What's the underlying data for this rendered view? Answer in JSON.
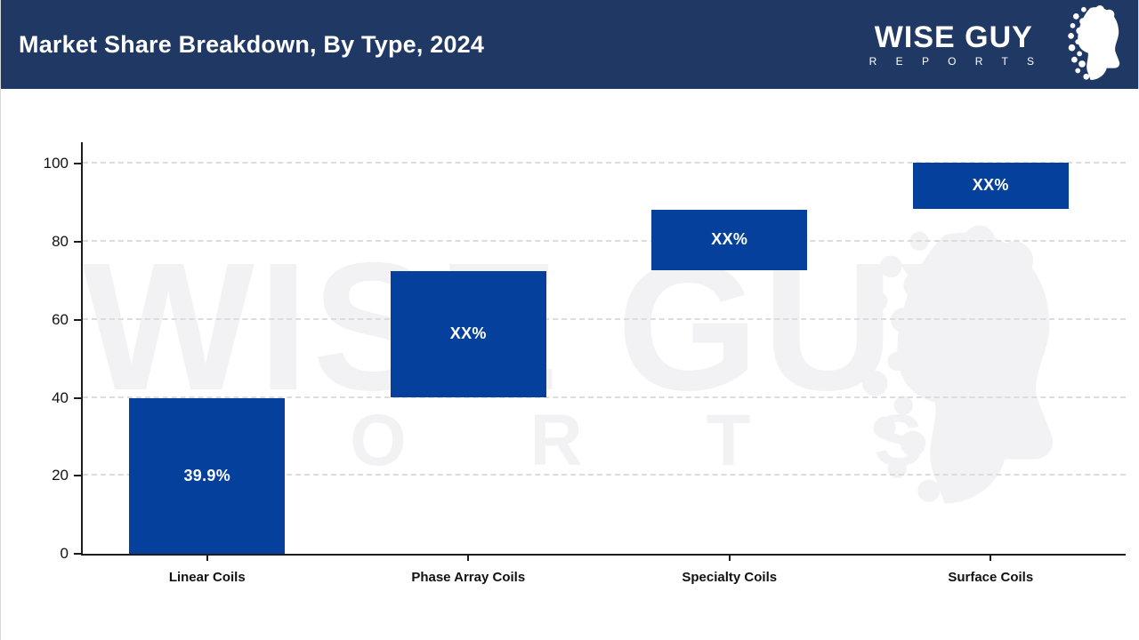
{
  "header": {
    "title": "Market Share Breakdown, By Type, 2024",
    "logo": {
      "line1": "WISE GUY",
      "line2": "R E P O R T S"
    }
  },
  "watermark": {
    "line1": "WISE GUY",
    "line2": "P O R T S"
  },
  "chart_data": {
    "type": "bar",
    "subtype": "waterfall",
    "title": "Market Share Breakdown, By Type, 2024",
    "categories": [
      "Linear Coils",
      "Phase Array Coils",
      "Specialty Coils",
      "Surface Coils"
    ],
    "segments": [
      {
        "category": "Linear Coils",
        "start": 0,
        "end": 39.9,
        "label": "39.9%"
      },
      {
        "category": "Phase Array Coils",
        "start": 40.1,
        "end": 72.6,
        "label": "XX%"
      },
      {
        "category": "Specialty Coils",
        "start": 72.8,
        "end": 88.3,
        "label": "XX%"
      },
      {
        "category": "Surface Coils",
        "start": 88.5,
        "end": 100.3,
        "label": "XX%"
      }
    ],
    "xlabel": "",
    "ylabel": "",
    "yticks": [
      0,
      20,
      40,
      60,
      80,
      100
    ],
    "ylim": [
      0,
      106
    ],
    "grid": "horizontal-dashed",
    "legend": "none",
    "colors": {
      "bar": "#05409d",
      "bar_label": "#ffffff",
      "axis": "#1c1c1c",
      "grid": "#dcdcdc",
      "header_bg": "#1f3864",
      "watermark": "#f2f2f4",
      "title_text": "#ffffff"
    }
  }
}
